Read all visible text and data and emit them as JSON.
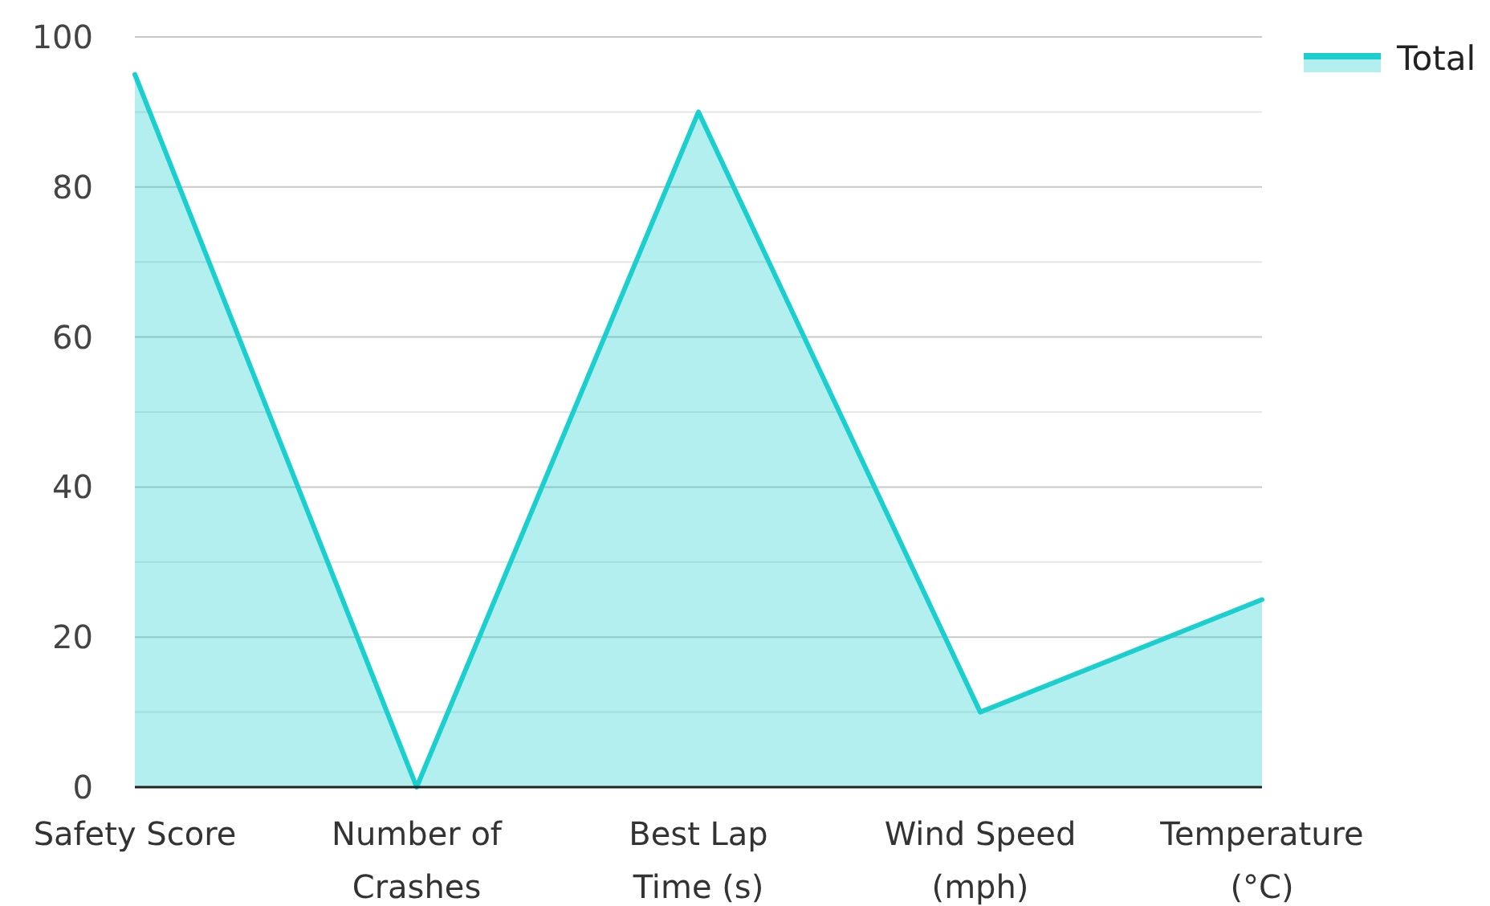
{
  "chart_data": {
    "type": "area",
    "categories": [
      "Safety Score",
      "Number of Crashes",
      "Best Lap Time (s)",
      "Wind Speed (mph)",
      "Temperature (°C)"
    ],
    "series": [
      {
        "name": "Total",
        "color": "#1ccfcf",
        "values": [
          95,
          0,
          90,
          10,
          25
        ]
      }
    ],
    "ylim": [
      0,
      100
    ],
    "yticks": [
      0,
      {
        "value": 10,
        "label": null
      },
      20,
      {
        "value": 30,
        "label": null
      },
      40,
      {
        "value": 50,
        "label": null
      },
      60,
      {
        "value": 70,
        "label": null
      },
      80,
      {
        "value": 90,
        "label": null
      },
      100
    ],
    "grid": "y",
    "legend": "top right"
  }
}
